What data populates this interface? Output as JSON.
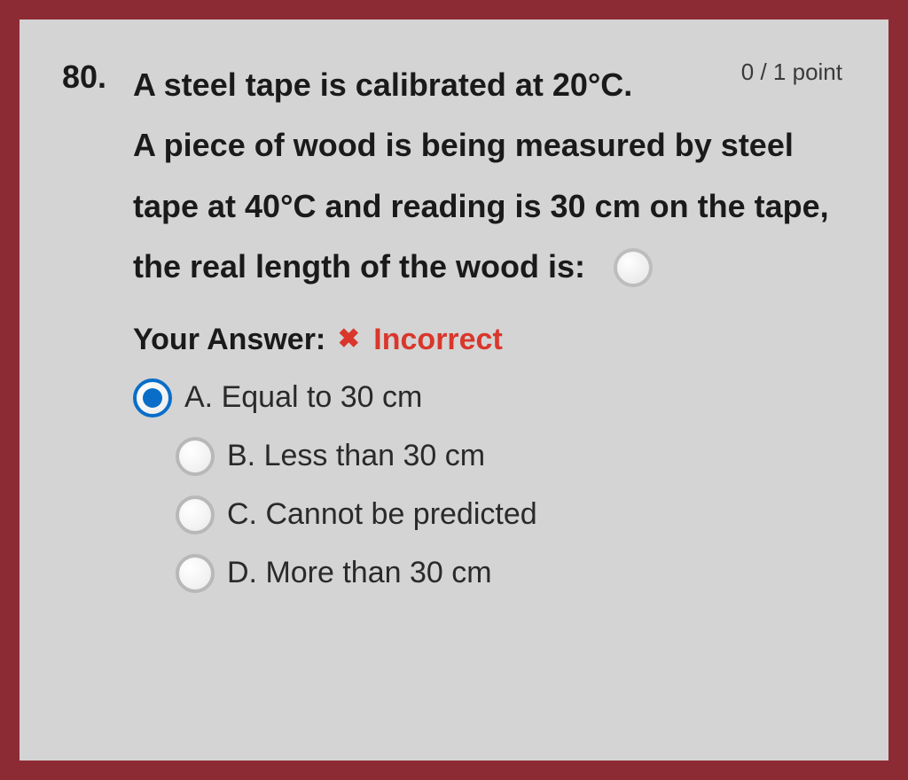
{
  "question": {
    "number": "80.",
    "points": "0 / 1 point",
    "text_line1": "A steel tape is calibrated at 20°C.",
    "text_rest": "A piece of wood is being measured by steel tape at 40°C and reading is 30 cm on the tape, the real length of the wood is:"
  },
  "answer": {
    "your_answer_label": "Your Answer:",
    "status_text": "Incorrect"
  },
  "options": [
    {
      "id": "A",
      "label": "A. Equal to 30 cm",
      "selected": true
    },
    {
      "id": "B",
      "label": "B. Less than 30 cm",
      "selected": false
    },
    {
      "id": "C",
      "label": "C. Cannot be predicted",
      "selected": false
    },
    {
      "id": "D",
      "label": "D. More than 30 cm",
      "selected": false
    }
  ],
  "colors": {
    "frame": "#8c2b33",
    "panel": "#d4d4d4",
    "text": "#1a1a1a",
    "incorrect": "#d9372c",
    "radio_selected": "#0a6ec9"
  }
}
